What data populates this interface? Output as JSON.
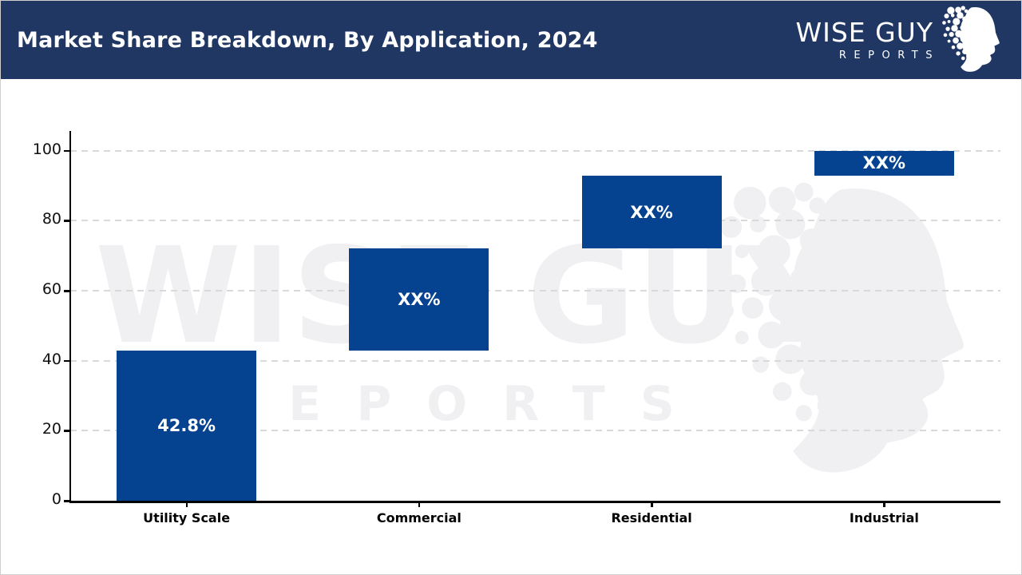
{
  "header": {
    "title": "Market Share Breakdown, By Application, 2024",
    "logo": {
      "name": "WISE GUY",
      "sub": "REPORTS"
    }
  },
  "watermark": {
    "name": "WISE GUY",
    "sub": "REPORTS"
  },
  "chart_data": {
    "type": "bar",
    "variant": "waterfall-breakdown",
    "title": "Market Share Breakdown, By Application, 2024",
    "categories": [
      "Utility Scale",
      "Commercial",
      "Residential",
      "Industrial"
    ],
    "segments": [
      {
        "category": "Utility Scale",
        "start": 0,
        "end": 42.8,
        "value": 42.8,
        "label": "42.8%"
      },
      {
        "category": "Commercial",
        "start": 42.8,
        "end": 72.1,
        "value": 29.3,
        "label": "XX%"
      },
      {
        "category": "Residential",
        "start": 72.1,
        "end": 92.8,
        "value": 20.7,
        "label": "XX%"
      },
      {
        "category": "Industrial",
        "start": 92.8,
        "end": 100,
        "value": 7.2,
        "label": "XX%"
      }
    ],
    "xlabel": "",
    "ylabel": "",
    "ylim": [
      0,
      105
    ],
    "yticks": [
      0,
      20,
      40,
      60,
      80,
      100
    ],
    "grid": "horizontal-dashed",
    "legend": "none",
    "bar_color": "#05428F"
  },
  "colors": {
    "header_bg": "#203764",
    "bar": "#05428F",
    "grid": "#d9d9d9",
    "watermark": "#f0f0f3",
    "bar_label": "#ffffff",
    "tick_label": "#111111",
    "axis": "#000000"
  }
}
